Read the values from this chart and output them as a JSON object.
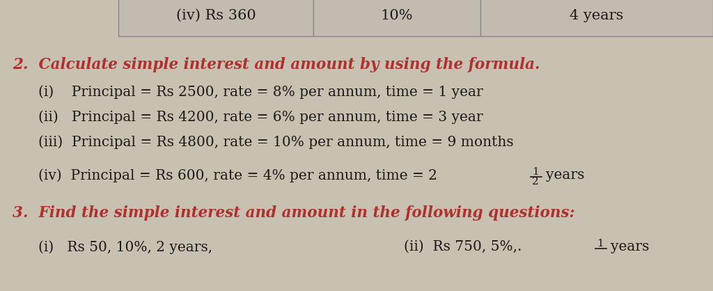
{
  "bg_color": "#c8c0b0",
  "table_bg": "#bab2a2",
  "table_row": {
    "col1": "(iv) Rs 360",
    "col2": "10%",
    "col3": "4 years"
  },
  "heading2": "2.  Calculate simple interest and amount by using the formula.",
  "item2_1": "(i)    Principal = Rs 2500, rate = 8% per annum, time = 1 year",
  "item2_2": "(ii)   Principal = Rs 4200, rate = 6% per annum, time = 3 year",
  "item2_3": "(iii)  Principal = Rs 4800, rate = 10% per annum, time = 9 months",
  "item2_4a": "(iv)  Principal = Rs 600, rate = 4% per annum, time = 2",
  "item2_4b": "years",
  "heading3": "3.  Find the simple interest and amount in the following questions:",
  "item3_left": "(i)   Rs 50, 10%, 2 years,",
  "item3_right_a": "(ii)  Rs 750, 5%,.",
  "item3_right_b": "years",
  "red_color": "#b03030",
  "black_color": "#1a1a1a",
  "font_family": "DejaVu Serif"
}
